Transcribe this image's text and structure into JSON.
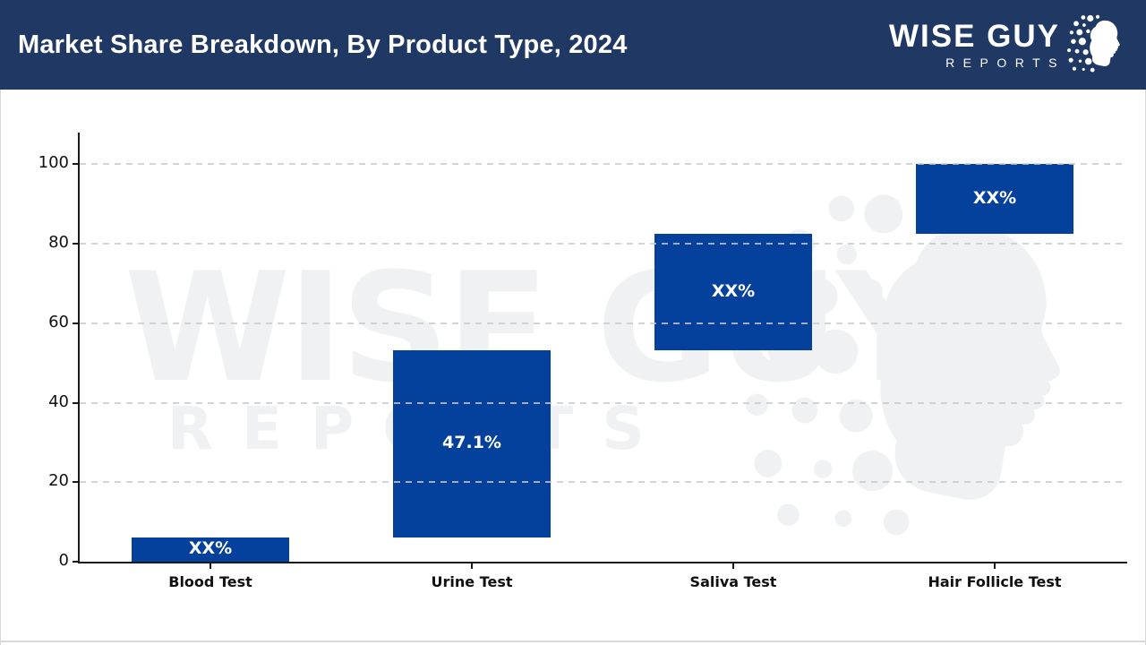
{
  "header": {
    "title": "Market Share Breakdown, By Product Type, 2024",
    "logo": {
      "line1": "WISE GUY",
      "line2": "REPORTS"
    }
  },
  "watermark": {
    "line1": "WISE GUY",
    "line2": "REPORTS"
  },
  "colors": {
    "header_bg": "#1f3864",
    "bar": "#04419c",
    "grid": "#c9c9c9",
    "watermark": "#f0f1f3"
  },
  "chart_data": {
    "type": "bar",
    "subtype": "waterfall-floating-bars",
    "title": "Market Share Breakdown, By Product Type, 2024",
    "xlabel": "",
    "ylabel": "",
    "categories": [
      "Blood Test",
      "Urine Test",
      "Saliva Test",
      "Hair Follicle Test"
    ],
    "segments": [
      {
        "category": "Blood Test",
        "start": 0,
        "end": 6.1,
        "label": "XX%"
      },
      {
        "category": "Urine Test",
        "start": 6.1,
        "end": 53.2,
        "label": "47.1%"
      },
      {
        "category": "Saliva Test",
        "start": 53.2,
        "end": 82.6,
        "label": "XX%"
      },
      {
        "category": "Hair Follicle Test",
        "start": 82.6,
        "end": 100,
        "label": "XX%"
      }
    ],
    "yticks": [
      0,
      20,
      40,
      60,
      80,
      100
    ],
    "ylim": [
      0,
      108
    ],
    "grid": true,
    "gridline_style": "dashed",
    "legend": null
  }
}
